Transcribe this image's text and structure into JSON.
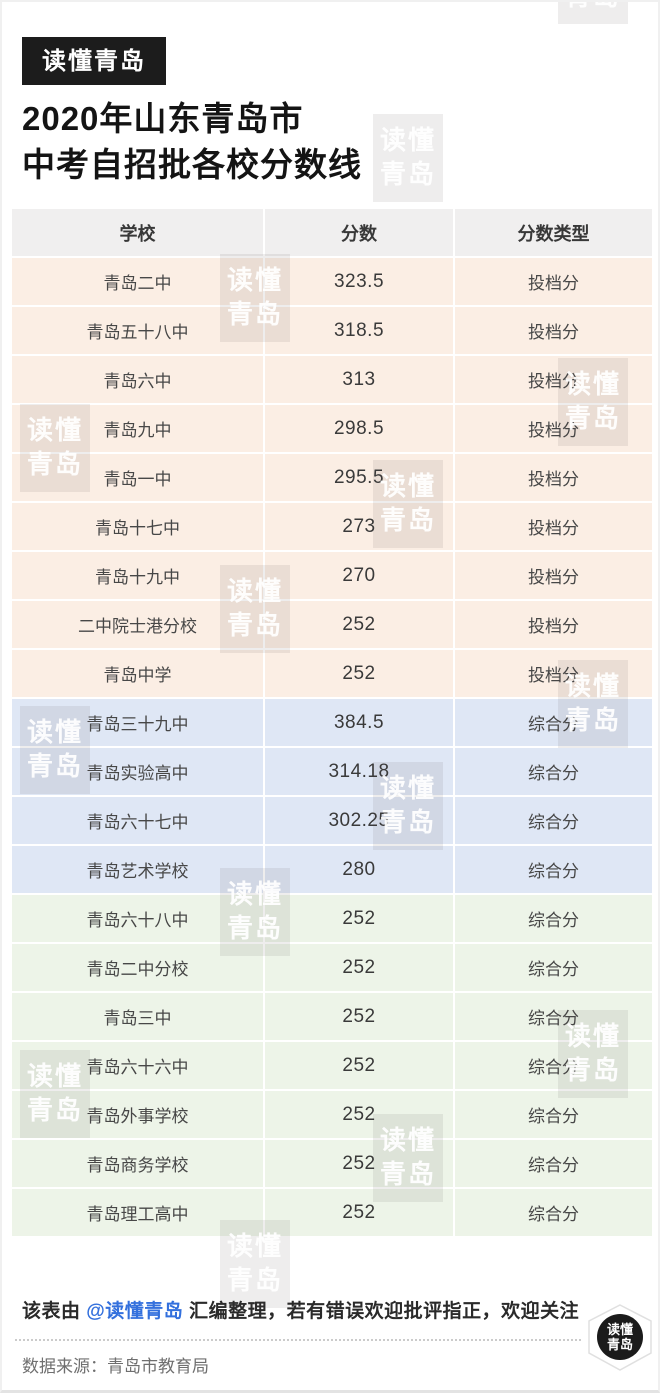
{
  "brand": {
    "badge_text": "读懂青岛"
  },
  "title": {
    "line1": "2020年山东青岛市",
    "line2": "中考自招批各校分数线"
  },
  "chart_data": {
    "type": "table",
    "title": "2020年山东青岛市中考自招批各校分数线",
    "columns": [
      "学校",
      "分数",
      "分数类型"
    ],
    "rows": [
      [
        "青岛二中",
        "323.5",
        "投档分"
      ],
      [
        "青岛五十八中",
        "318.5",
        "投档分"
      ],
      [
        "青岛六中",
        "313",
        "投档分"
      ],
      [
        "青岛九中",
        "298.5",
        "投档分"
      ],
      [
        "青岛一中",
        "295.5",
        "投档分"
      ],
      [
        "青岛十七中",
        "273",
        "投档分"
      ],
      [
        "青岛十九中",
        "270",
        "投档分"
      ],
      [
        "二中院士港分校",
        "252",
        "投档分"
      ],
      [
        "青岛中学",
        "252",
        "投档分"
      ],
      [
        "青岛三十九中",
        "384.5",
        "综合分"
      ],
      [
        "青岛实验高中",
        "314.18",
        "综合分"
      ],
      [
        "青岛六十七中",
        "302.25",
        "综合分"
      ],
      [
        "青岛艺术学校",
        "280",
        "综合分"
      ],
      [
        "青岛六十八中",
        "252",
        "综合分"
      ],
      [
        "青岛二中分校",
        "252",
        "综合分"
      ],
      [
        "青岛三中",
        "252",
        "综合分"
      ],
      [
        "青岛六十六中",
        "252",
        "综合分"
      ],
      [
        "青岛外事学校",
        "252",
        "综合分"
      ],
      [
        "青岛商务学校",
        "252",
        "综合分"
      ],
      [
        "青岛理工高中",
        "252",
        "综合分"
      ]
    ],
    "row_groups": [
      {
        "first_row": 0,
        "last_row": 8,
        "score_type": "投档分",
        "color": "#fbeee4"
      },
      {
        "first_row": 9,
        "last_row": 12,
        "score_type": "综合分",
        "color": "#dfe7f5"
      },
      {
        "first_row": 13,
        "last_row": 19,
        "score_type": "综合分",
        "color": "#edf4e8"
      }
    ],
    "header_bg": "#f0efef"
  },
  "footer": {
    "credit_prefix": "该表由 ",
    "credit_handle": "@读懂青岛",
    "credit_suffix": " 汇编整理，若有错误欢迎批评指正，欢迎关注",
    "source": "数据来源：青岛市教育局",
    "seal_line1": "读懂",
    "seal_line2": "青岛"
  },
  "watermark": {
    "line1": "读懂",
    "line2": "青岛",
    "positions": [
      [
        556,
        -66
      ],
      [
        371,
        112
      ],
      [
        218,
        252
      ],
      [
        556,
        356
      ],
      [
        18,
        402
      ],
      [
        371,
        458
      ],
      [
        218,
        563
      ],
      [
        556,
        658
      ],
      [
        18,
        704
      ],
      [
        371,
        760
      ],
      [
        218,
        866
      ],
      [
        556,
        1008
      ],
      [
        18,
        1048
      ],
      [
        371,
        1112
      ],
      [
        218,
        1218
      ]
    ]
  },
  "theme": {
    "accent_blue": "#3370dd",
    "badge_bg": "#1c1c1c",
    "header_row_bg": "#f0efef",
    "toudang_row_bg": "#fbeee4",
    "zonghe_blue_row_bg": "#dfe7f5",
    "zonghe_green_row_bg": "#edf4e8"
  }
}
